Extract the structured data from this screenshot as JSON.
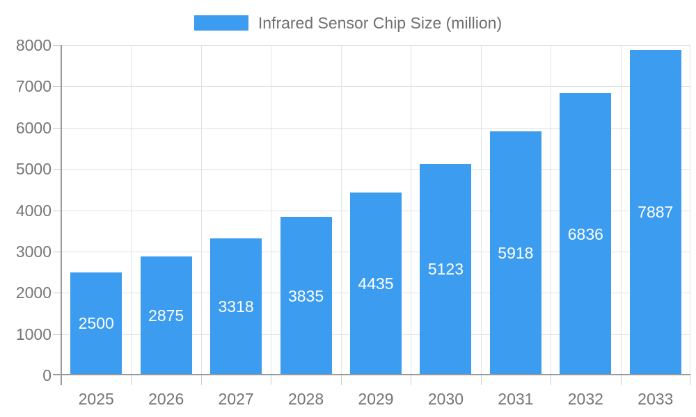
{
  "legend": {
    "label": "Infrared Sensor Chip Size (million)"
  },
  "chart_data": {
    "type": "bar",
    "title": "Infrared Sensor Chip Size (million)",
    "categories": [
      "2025",
      "2026",
      "2027",
      "2028",
      "2029",
      "2030",
      "2031",
      "2032",
      "2033"
    ],
    "values": [
      2500,
      2875,
      3318,
      3835,
      4435,
      5123,
      5918,
      6836,
      7887
    ],
    "xlabel": "",
    "ylabel": "",
    "ylim": [
      0,
      8000
    ],
    "yticks": [
      0,
      1000,
      2000,
      3000,
      4000,
      5000,
      6000,
      7000,
      8000
    ],
    "grid": true,
    "legend_position": "top-center",
    "value_label_position": "inside-center"
  },
  "colors": {
    "bar": "#3b9cf0",
    "axis": "#999999",
    "grid": "#e2e2e2",
    "tick": "#cccccc",
    "label_text": "#757575",
    "legend_text": "#707070",
    "bar_label": "#ffffff",
    "background": "#ffffff"
  }
}
